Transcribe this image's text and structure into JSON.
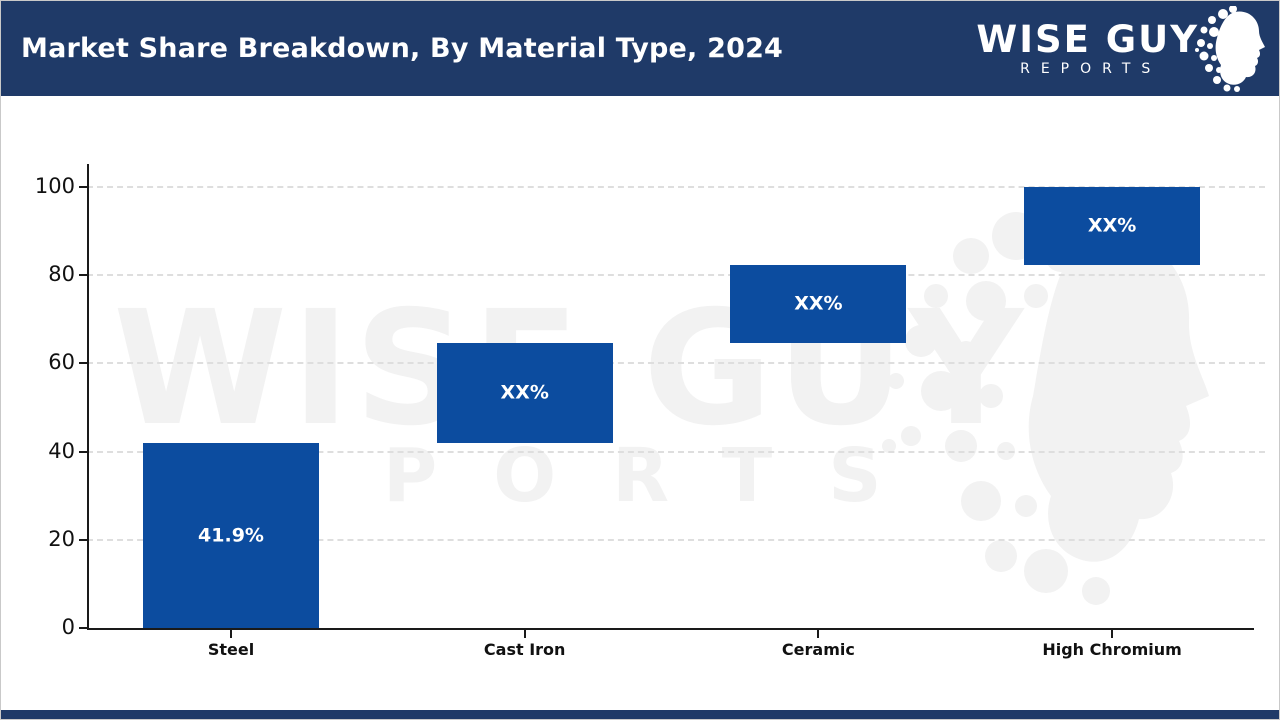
{
  "header": {
    "title": "Market Share Breakdown, By Material Type, 2024",
    "logo": {
      "line1": "WISE GUY",
      "line2": "REPORTS"
    }
  },
  "watermark": {
    "line1": "WISE GUY",
    "line2": "PORTS"
  },
  "chart_data": {
    "type": "bar",
    "subtype": "waterfall",
    "title": "Market Share Breakdown, By Material Type, 2024",
    "categories": [
      "Steel",
      "Cast Iron",
      "Ceramic",
      "High Chromium"
    ],
    "segments": [
      {
        "label": "Steel",
        "start": 0,
        "end": 41.9,
        "display": "41.9%"
      },
      {
        "label": "Cast Iron",
        "start": 41.9,
        "end": 64.7,
        "display": "XX%"
      },
      {
        "label": "Ceramic",
        "start": 64.7,
        "end": 82.3,
        "display": "XX%"
      },
      {
        "label": "High Chromium",
        "start": 82.3,
        "end": 100,
        "display": "XX%"
      }
    ],
    "yticks": [
      0,
      20,
      40,
      60,
      80,
      100
    ],
    "ylim": [
      0,
      105
    ],
    "xlabel": "",
    "ylabel": "",
    "grid": "horizontal-dashed",
    "legend": "none"
  },
  "colors": {
    "header_bg": "#1f3a68",
    "footer_bg": "#1f3a68",
    "bar": "#0c4c9f",
    "bar_label": "#ffffff",
    "grid": "#dedede",
    "axis": "#1a1a1a",
    "watermark": "#f2f2f2"
  }
}
